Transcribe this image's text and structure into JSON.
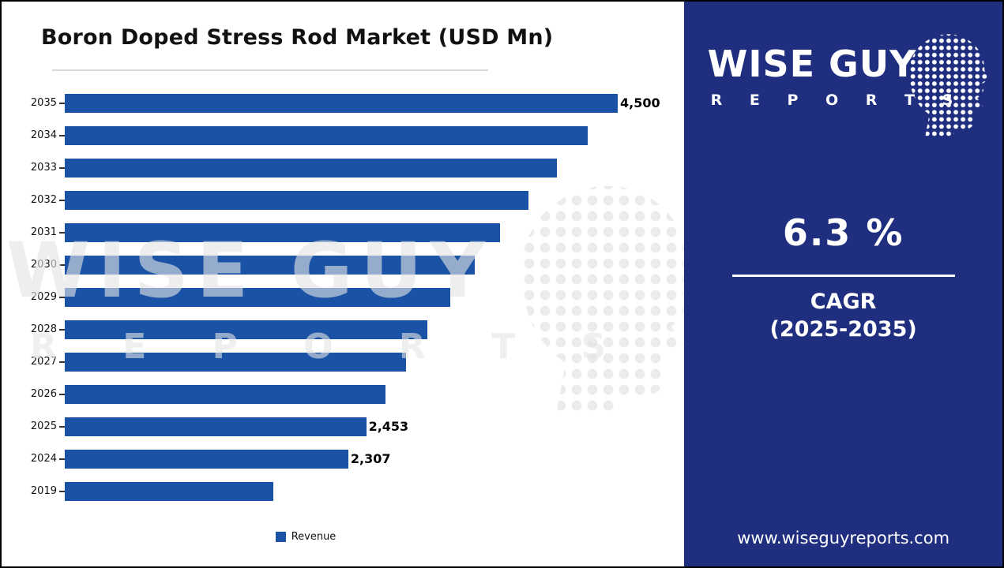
{
  "title": "Boron Doped Stress Rod Market (USD Mn)",
  "chart_data": {
    "type": "bar",
    "orientation": "horizontal",
    "title": "Boron Doped Stress Rod Market (USD Mn)",
    "categories": [
      "2035",
      "2034",
      "2033",
      "2032",
      "2031",
      "2030",
      "2029",
      "2028",
      "2027",
      "2026",
      "2025",
      "2024",
      "2019"
    ],
    "values": [
      4500,
      4258,
      4008,
      3771,
      3541,
      3338,
      3134,
      2950,
      2779,
      2608,
      2453,
      2307,
      1700
    ],
    "value_labels": [
      "4,500",
      "",
      "",
      "",
      "",
      "",
      "",
      "",
      "",
      "",
      "2,453",
      "2,307",
      ""
    ],
    "xlim": [
      0,
      4500
    ],
    "grid": false,
    "legend": [
      "Revenue"
    ],
    "legend_position": "bottom",
    "bar_color": "#1a53a5"
  },
  "legend": {
    "revenue": "Revenue"
  },
  "watermark": {
    "line1": "WISE GUY",
    "line2": "R E P O R T S"
  },
  "panel": {
    "background_color": "#1f2e7e",
    "logo_title": "WISE GUY",
    "logo_subtitle": "R E P O R T S",
    "cagr_value": "6.3 %",
    "cagr_label": "CAGR",
    "cagr_period": "(2025-2035)",
    "website": "www.wiseguyreports.com"
  }
}
